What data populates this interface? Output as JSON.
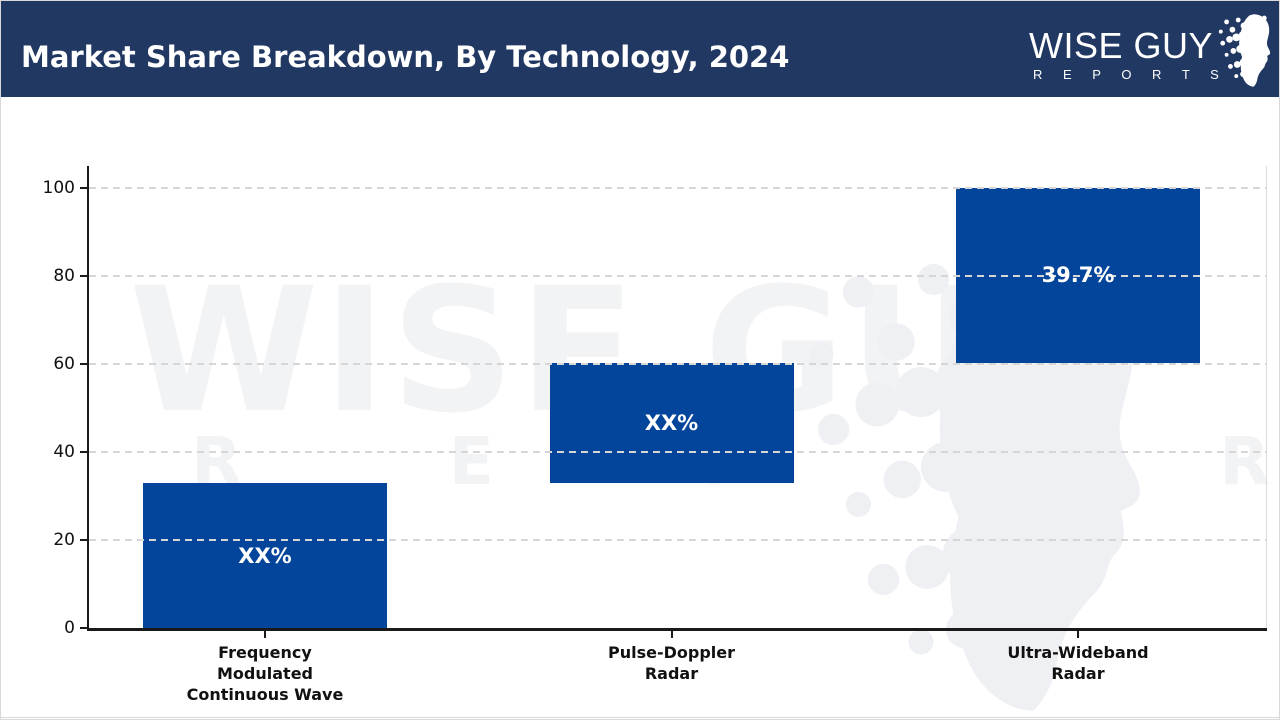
{
  "header": {
    "title": "Market Share Breakdown, By Technology, 2024",
    "bg_color": "#213863",
    "logo": {
      "name": "WISE GUY",
      "tagline": "R E P O R T S"
    }
  },
  "watermark": {
    "name": "WISE GUY",
    "tagline": "R E P O R T S"
  },
  "chart_data": {
    "type": "bar",
    "subtype": "floating-waterfall",
    "title": "Market Share Breakdown, By Technology, 2024",
    "categories": [
      "Frequency Modulated Continuous Wave",
      "Pulse-Doppler Radar",
      "Ultra-Wideband Radar"
    ],
    "category_lines": [
      [
        "Frequency",
        "Modulated",
        "Continuous Wave"
      ],
      [
        "Pulse-Doppler",
        "Radar"
      ],
      [
        "Ultra-Wideband",
        "Radar"
      ]
    ],
    "series": [
      {
        "name": "Market share (%)",
        "segments": [
          {
            "category": "Frequency Modulated Continuous Wave",
            "from": 0,
            "to": 32.9,
            "label": "XX%"
          },
          {
            "category": "Pulse-Doppler Radar",
            "from": 32.9,
            "to": 60.3,
            "label": "XX%"
          },
          {
            "category": "Ultra-Wideband Radar",
            "from": 60.3,
            "to": 100,
            "label": "39.7%"
          }
        ]
      }
    ],
    "ylim": [
      0,
      100
    ],
    "yticks": [
      0,
      20,
      40,
      60,
      80,
      100
    ],
    "ytick_labels": [
      "0",
      "20",
      "40",
      "60",
      "80",
      "100"
    ],
    "xlabel": "",
    "ylabel": "",
    "grid": {
      "axis": "y",
      "style": "dashed",
      "color": "#d6d6d6",
      "drawn_over_bars": true
    },
    "legend": "none",
    "bar_color": "#04459C",
    "bar_label_color": "#ffffff"
  }
}
